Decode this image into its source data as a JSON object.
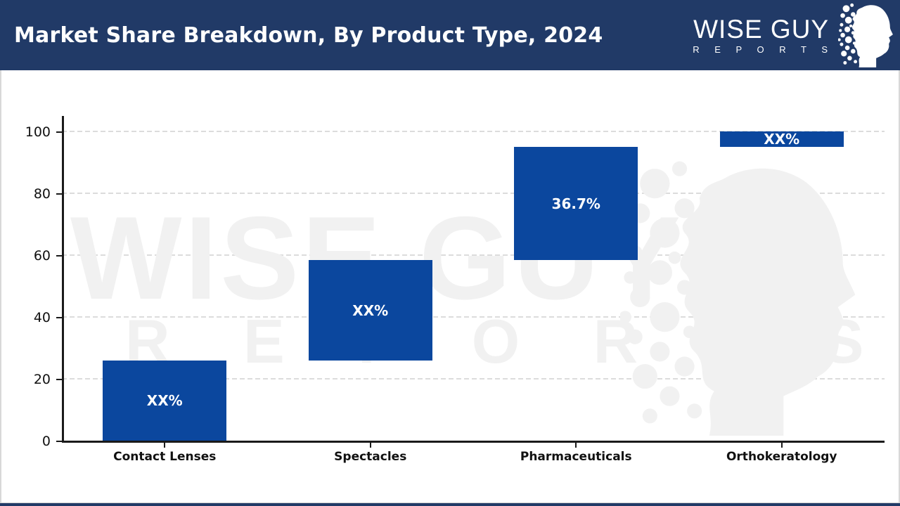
{
  "header": {
    "title": "Market Share Breakdown, By Product Type, 2024",
    "logo": {
      "line1": "WISE GUY",
      "line2": "R E P O R T S"
    }
  },
  "watermark": {
    "line1": "WISE GUY",
    "line2": "R E P O R T S"
  },
  "colors": {
    "header_bg": "#213a67",
    "header_text": "#ffffff",
    "bar": "#0b479e",
    "grid": "#dcdcdc",
    "axis": "#1a1a1a",
    "bar_label_text": "#ffffff",
    "watermark": "#f1f1f1"
  },
  "chart_data": {
    "type": "bar",
    "subtype": "waterfall",
    "title": "Market Share Breakdown, By Product Type, 2024",
    "xlabel": "",
    "ylabel": "",
    "ylim": [
      0,
      100
    ],
    "yticks": [
      0,
      20,
      40,
      60,
      80,
      100
    ],
    "grid": "horizontal-dashed",
    "legend": "none",
    "categories": [
      "Contact Lenses",
      "Spectacles",
      "Pharmaceuticals",
      "Orthokeratology"
    ],
    "segments": [
      {
        "category": "Contact Lenses",
        "start": 0,
        "end": 26,
        "value_label": "XX%"
      },
      {
        "category": "Spectacles",
        "start": 26,
        "end": 58.3,
        "value_label": "XX%"
      },
      {
        "category": "Pharmaceuticals",
        "start": 58.3,
        "end": 95,
        "value_label": "36.7%"
      },
      {
        "category": "Orthokeratology",
        "start": 95,
        "end": 100,
        "value_label": "XX%"
      }
    ]
  }
}
